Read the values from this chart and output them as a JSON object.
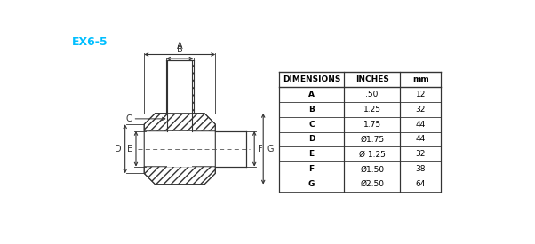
{
  "title": "EX6-5",
  "title_color": "#00BFFF",
  "table_headers": [
    "DIMENSIONS",
    "INCHES",
    "mm"
  ],
  "table_rows": [
    [
      "A",
      ".50",
      "12"
    ],
    [
      "B",
      "1.25",
      "32"
    ],
    [
      "C",
      "1.75",
      "44"
    ],
    [
      "D",
      "Ø1.75",
      "44"
    ],
    [
      "E",
      "Ø 1.25",
      "32"
    ],
    [
      "F",
      "Ø1.50",
      "38"
    ],
    [
      "G",
      "Ø2.50",
      "64"
    ]
  ],
  "bg_color": "#ffffff",
  "line_color": "#333333"
}
